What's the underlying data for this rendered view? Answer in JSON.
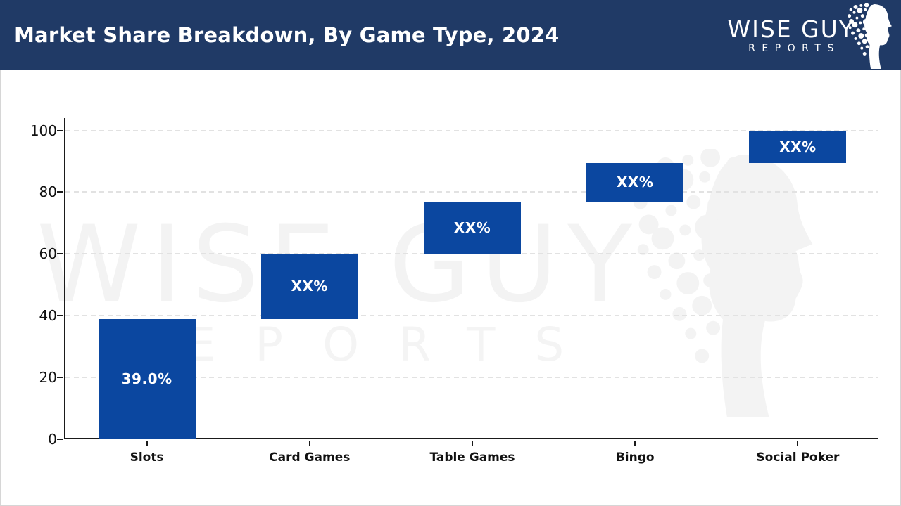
{
  "header": {
    "title": "Market Share Breakdown, By Game Type, 2024",
    "logo": {
      "wordmark": "WISE GUY",
      "sub": "REPORTS"
    }
  },
  "watermark": {
    "line1": "WISE GUY",
    "line2": "REPORTS"
  },
  "chart_data": {
    "type": "bar",
    "subtype": "waterfall",
    "title": "Market Share Breakdown, By Game Type, 2024",
    "categories": [
      "Slots",
      "Card Games",
      "Table Games",
      "Bingo",
      "Social Poker"
    ],
    "segments": [
      {
        "category": "Slots",
        "start": 0,
        "end": 39,
        "label": "39.0%"
      },
      {
        "category": "Card Games",
        "start": 39,
        "end": 60,
        "label": "XX%"
      },
      {
        "category": "Table Games",
        "start": 60,
        "end": 77,
        "label": "XX%"
      },
      {
        "category": "Bingo",
        "start": 77,
        "end": 89.5,
        "label": "XX%"
      },
      {
        "category": "Social Poker",
        "start": 89.5,
        "end": 100,
        "label": "XX%"
      }
    ],
    "ylim": [
      0,
      104
    ],
    "yticks": [
      0,
      20,
      40,
      60,
      80,
      100
    ],
    "grid": "horizontal-dashed",
    "legend": "none",
    "xlabel": "",
    "ylabel": ""
  },
  "colors": {
    "header_bg": "#203A66",
    "bar_fill": "#0B47A0",
    "bar_label": "#FFFFFF",
    "gridline": "#E2E2E2",
    "axis": "#1A1A1A",
    "watermark": "#F3F3F3",
    "canvas_border": "#D6D6D6"
  }
}
